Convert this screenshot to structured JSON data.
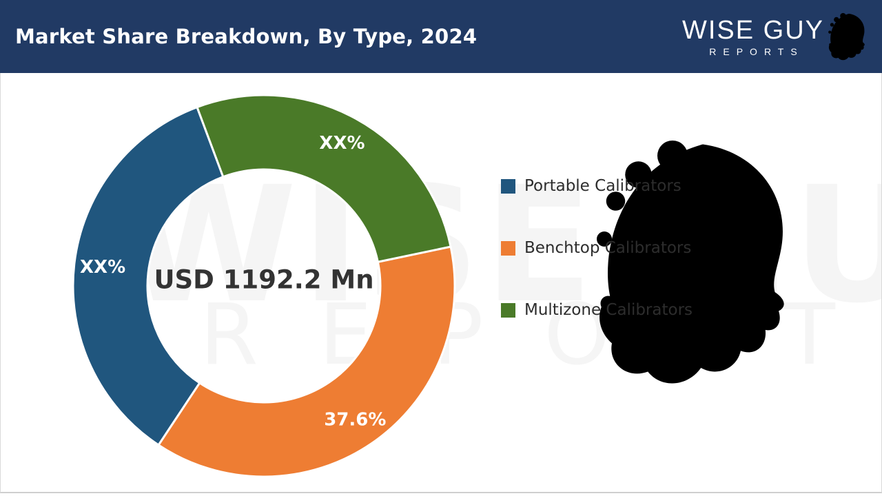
{
  "header": {
    "title": "Market Share Breakdown, By Type, 2024",
    "bg_color": "#213A64",
    "logo": {
      "line1": "WISE GUY",
      "line2": "REPORTS",
      "head_icon": "dotted-face-profile"
    }
  },
  "chart_data": {
    "type": "pie",
    "subtype": "donut",
    "title": "Market Share Breakdown, By Type, 2024",
    "center_label": "USD 1192.2 Mn",
    "start_angle_deg": 110.5,
    "direction": "counterclockwise",
    "inner_radius_ratio": 0.61,
    "legend_position": "right",
    "slices": [
      {
        "name": "Portable Calibrators",
        "value_pct": 35.0,
        "label": "XX%",
        "color": "#20567E"
      },
      {
        "name": "Benchtop Calibrators",
        "value_pct": 37.6,
        "label": "37.6%",
        "color": "#EE7D33"
      },
      {
        "name": "Multizone Calibrators",
        "value_pct": 27.4,
        "label": "XX%",
        "color": "#4A7A28"
      }
    ]
  },
  "watermark": {
    "line1": "WISE GUY",
    "line2": "REPORTS",
    "head_icon": "dotted-face-profile",
    "color": "#F5F5F5"
  },
  "frame_color": "#D9D9D9"
}
